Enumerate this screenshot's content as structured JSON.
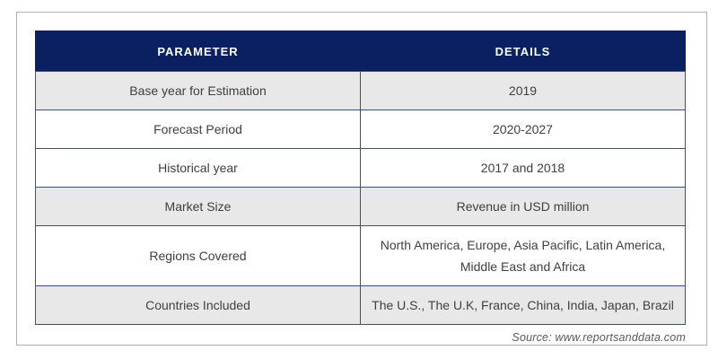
{
  "colors": {
    "header_bg": "#0a2161",
    "header_text": "#ffffff",
    "row_shaded_bg": "#e8e8e8",
    "row_plain_bg": "#ffffff",
    "cell_border": "#3d4e80",
    "card_border": "#b0b0b0",
    "body_text": "#3f3f3f",
    "source_text": "#5a5a5a"
  },
  "table": {
    "columns": [
      "PARAMETER",
      "DETAILS"
    ],
    "rows": [
      {
        "parameter": "Base year for Estimation",
        "details": "2019",
        "shaded": true
      },
      {
        "parameter": "Forecast Period",
        "details": "2020-2027",
        "shaded": false
      },
      {
        "parameter": "Historical year",
        "details": "2017 and 2018",
        "shaded": false
      },
      {
        "parameter": "Market Size",
        "details": "Revenue in USD million",
        "shaded": true
      },
      {
        "parameter": "Regions Covered",
        "details": "North America, Europe, Asia Pacific, Latin America, Middle East and Africa",
        "shaded": false
      },
      {
        "parameter": "Countries Included",
        "details": "The U.S., The  U.K, France, China, India, Japan, Brazil",
        "shaded": true
      }
    ]
  },
  "footer": {
    "source": "Source: www.reportsanddata.com"
  }
}
